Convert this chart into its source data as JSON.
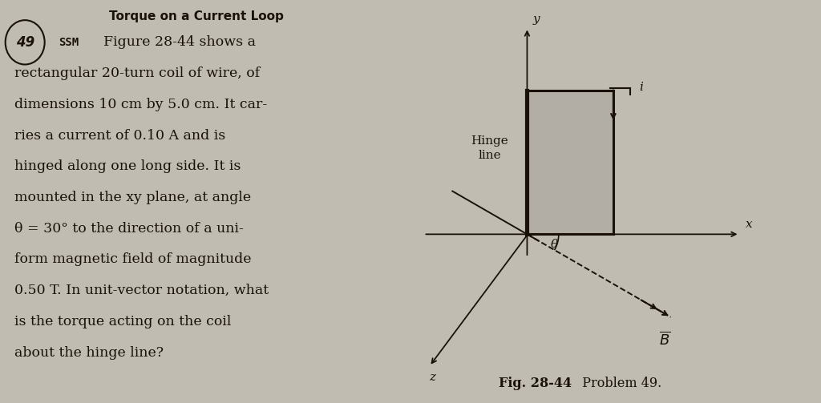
{
  "bg_color": "#c0bcb2",
  "text_color": "#1a1208",
  "diagram_color": "#1a1208",
  "fig_caption_bold": "Fig. 28-44",
  "fig_caption_normal": "  Problem 49.",
  "problem_number": "49",
  "ssm_label": "SSM",
  "header_text": "Torque on a Current Loop",
  "problem_text_lines": [
    "Figure 28-44 shows a",
    "rectangular 20-turn coil of wire, of",
    "dimensions 10 cm by 5.0 cm. It car-",
    "ries a current of 0.10 A and is",
    "hinged along one long side. It is",
    "mounted in the xy plane, at angle",
    "θ = 30° to the direction of a uni-",
    "form magnetic field of magnitude",
    "0.50 T. In unit-vector notation, what",
    "is the torque acting on the coil",
    "about the hinge line?"
  ],
  "axis_labels": {
    "x": "x",
    "y": "y",
    "z": "z"
  },
  "hinge_label": "Hinge\nline",
  "B_label": "B",
  "i_label": "i",
  "theta_label": "θ"
}
